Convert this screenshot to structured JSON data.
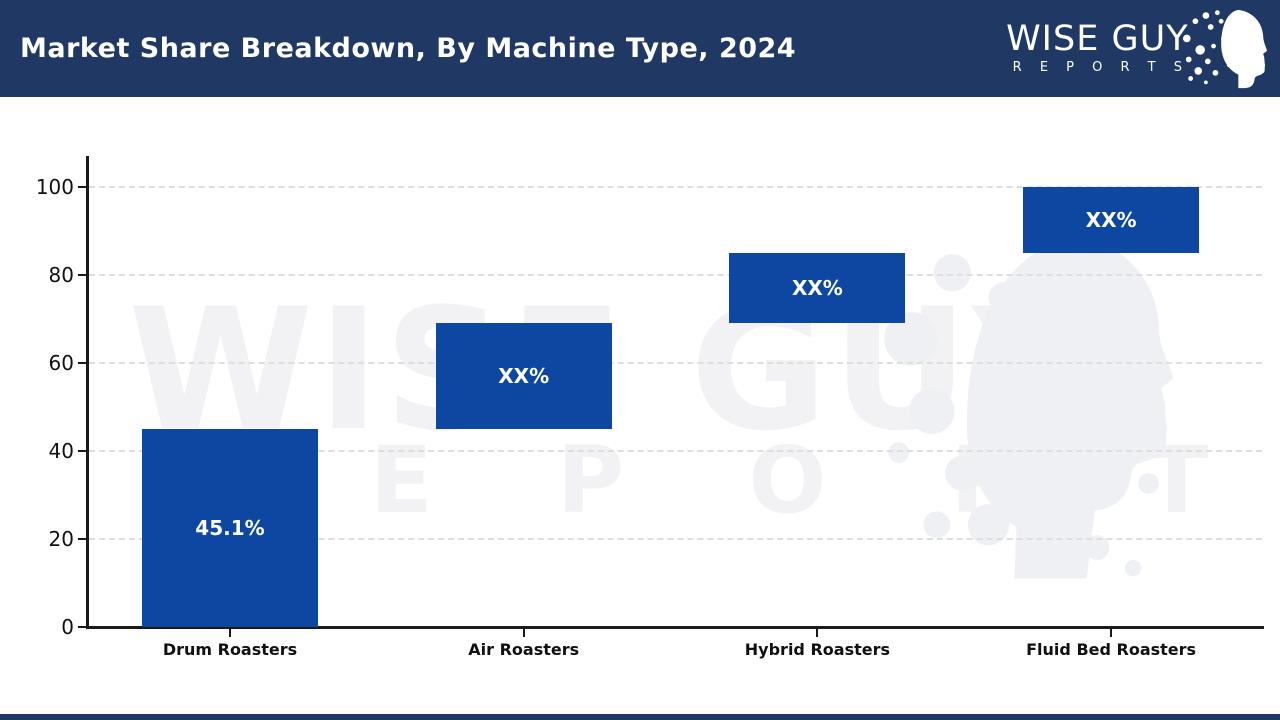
{
  "header": {
    "title": "Market Share Breakdown, By Machine Type, 2024",
    "bg_color": "#1f3864",
    "logo": {
      "line1": "WISE GUY",
      "line2": "R E P O R T S",
      "face_icon": "dotted-face-profile"
    }
  },
  "watermark": {
    "line1": "WISE GUY",
    "line2": "R E P O R T S",
    "face_icon": "dotted-face-profile",
    "color": "#f2f2f5"
  },
  "footer": {
    "bar_color": "#1f3864"
  },
  "chart_data": {
    "type": "bar",
    "subtype": "waterfall",
    "title": "Market Share Breakdown, By Machine Type, 2024",
    "categories": [
      "Drum Roasters",
      "Air Roasters",
      "Hybrid Roasters",
      "Fluid Bed Roasters"
    ],
    "segments": [
      {
        "category": "Drum Roasters",
        "start": 0,
        "end": 45.1,
        "label": "45.1%"
      },
      {
        "category": "Air Roasters",
        "start": 45.1,
        "end": 69,
        "label": "XX%"
      },
      {
        "category": "Hybrid Roasters",
        "start": 69,
        "end": 85,
        "label": "XX%"
      },
      {
        "category": "Fluid Bed Roasters",
        "start": 85,
        "end": 100,
        "label": "XX%"
      }
    ],
    "xlabel": "",
    "ylabel": "",
    "ylim": [
      0,
      107
    ],
    "yticks": [
      0,
      20,
      40,
      60,
      80,
      100
    ],
    "grid": "horizontal dashed",
    "legend": "none",
    "bar_color": "#0d47a1",
    "bar_label_color": "#ffffff",
    "axis_color": "#1a1a1a",
    "grid_color": "#dedede",
    "tick_label_color": "#111111"
  }
}
